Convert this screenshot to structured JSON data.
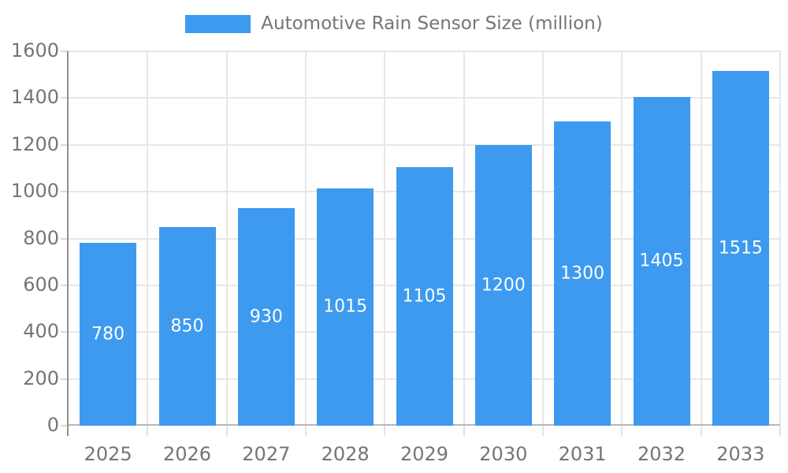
{
  "legend": {
    "label": "Automotive Rain Sensor Size (million)"
  },
  "colors": {
    "bar": "#3d9aef",
    "bar_label": "#ffffff",
    "axis_text": "#757575",
    "grid": "#e7e7e7",
    "y_axis_line": "#8f8f8f",
    "x_axis_line": "#b9b9b9",
    "background": "#ffffff"
  },
  "chart_data": {
    "type": "bar",
    "title": "Automotive Rain Sensor Size (million)",
    "categories": [
      "2025",
      "2026",
      "2027",
      "2028",
      "2029",
      "2030",
      "2031",
      "2032",
      "2033"
    ],
    "values": [
      780,
      850,
      930,
      1015,
      1105,
      1200,
      1300,
      1405,
      1515
    ],
    "xlabel": "",
    "ylabel": "",
    "ylim": [
      0,
      1600
    ],
    "ytick_step": 200,
    "ytick_labels": [
      "0",
      "200",
      "400",
      "600",
      "800",
      "1000",
      "1200",
      "1400",
      "1600"
    ],
    "grid": true,
    "legend_position": "top-center",
    "bar_labels_inside": true,
    "bar_label_position": "center"
  }
}
